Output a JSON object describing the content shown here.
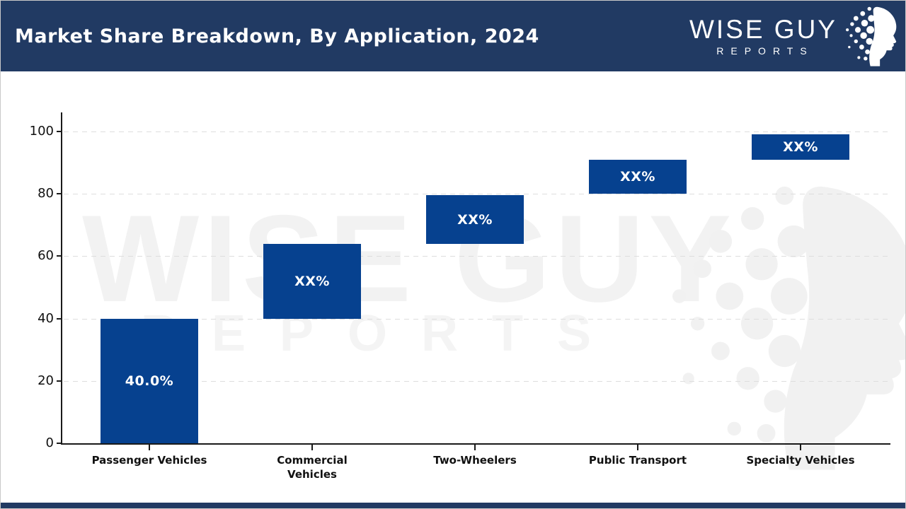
{
  "header": {
    "title": "Market Share Breakdown, By Application, 2024",
    "brand_line1": "WISE GUY",
    "brand_line2": "REPORTS",
    "bg_color": "#213a63"
  },
  "watermark": {
    "line1": "WISE GUY",
    "line2": "REPORTS"
  },
  "chart_data": {
    "type": "bar",
    "subtype": "waterfall",
    "title": "Market Share Breakdown, By Application, 2024",
    "categories": [
      "Passenger Vehicles",
      "Commercial\nVehicles",
      "Two-Wheelers",
      "Public Transport",
      "Specialty Vehicles"
    ],
    "segments": [
      {
        "category": "Passenger Vehicles",
        "start": 0,
        "end": 40,
        "label": "40.0%"
      },
      {
        "category": "Commercial Vehicles",
        "start": 40,
        "end": 64,
        "label": "XX%"
      },
      {
        "category": "Two-Wheelers",
        "start": 64,
        "end": 79.5,
        "label": "XX%"
      },
      {
        "category": "Public Transport",
        "start": 80,
        "end": 91,
        "label": "XX%"
      },
      {
        "category": "Specialty Vehicles",
        "start": 91,
        "end": 99,
        "label": "XX%"
      }
    ],
    "y_ticks": [
      0,
      20,
      40,
      60,
      80,
      100
    ],
    "ylim": [
      0,
      105
    ],
    "xlabel": "",
    "ylabel": "",
    "grid": "dashed-horizontal",
    "legend": "none",
    "bar_color": "#06418f",
    "bar_label_color": "#ffffff"
  }
}
